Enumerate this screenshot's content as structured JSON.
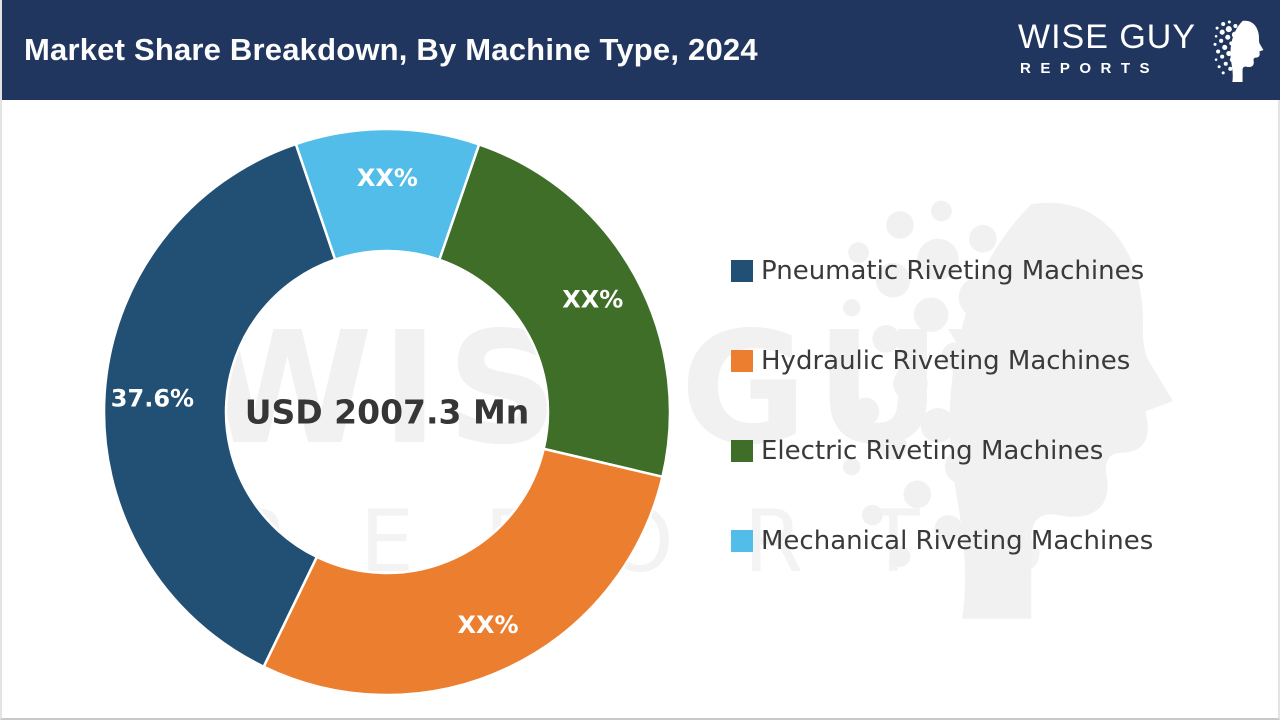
{
  "header": {
    "title": "Market Share Breakdown, By Machine Type, 2024",
    "logo": {
      "line1": "WISE GUY",
      "line2": "REPORTS"
    }
  },
  "watermark": {
    "line1": "WISEGUY",
    "line2": "REPORTS"
  },
  "chart_data": {
    "type": "pie",
    "subtype": "donut",
    "title": "Market Share Breakdown, By Machine Type, 2024",
    "center_label": "USD 2007.3 Mn",
    "total_value": "USD 2007.3 Mn",
    "units": "percent of market share",
    "start_angle_deg": -18.8,
    "donut_hole_ratio": 0.57,
    "note": "Only the Pneumatic slice shows a numeric label (37.6%); other slices are masked as XX% — their value_pct is estimated from arc angles.",
    "slices": [
      {
        "name": "Mechanical Riveting Machines",
        "value_pct": 10.5,
        "label": "XX%",
        "color": "#52bde9"
      },
      {
        "name": "Electric Riveting Machines",
        "value_pct": 23.4,
        "label": "XX%",
        "color": "#3e6e27"
      },
      {
        "name": "Hydraulic Riveting Machines",
        "value_pct": 28.5,
        "label": "XX%",
        "color": "#ec7e2f"
      },
      {
        "name": "Pneumatic Riveting Machines",
        "value_pct": 37.6,
        "label": "37.6%",
        "color": "#225074"
      }
    ],
    "legend_position": "right",
    "legend": [
      {
        "label": "Pneumatic Riveting Machines",
        "color": "#225074"
      },
      {
        "label": "Hydraulic Riveting Machines",
        "color": "#ec7e2f"
      },
      {
        "label": "Electric Riveting Machines",
        "color": "#3e6e27"
      },
      {
        "label": "Mechanical Riveting Machines",
        "color": "#52bde9"
      }
    ],
    "colors": {
      "header_bg": "#21365f",
      "header_text": "#fcfcfc",
      "center_text": "#363636",
      "legend_text": "#3a3a3a",
      "watermark": "#f1f1f1",
      "slice_divider": "#ffffff"
    }
  }
}
